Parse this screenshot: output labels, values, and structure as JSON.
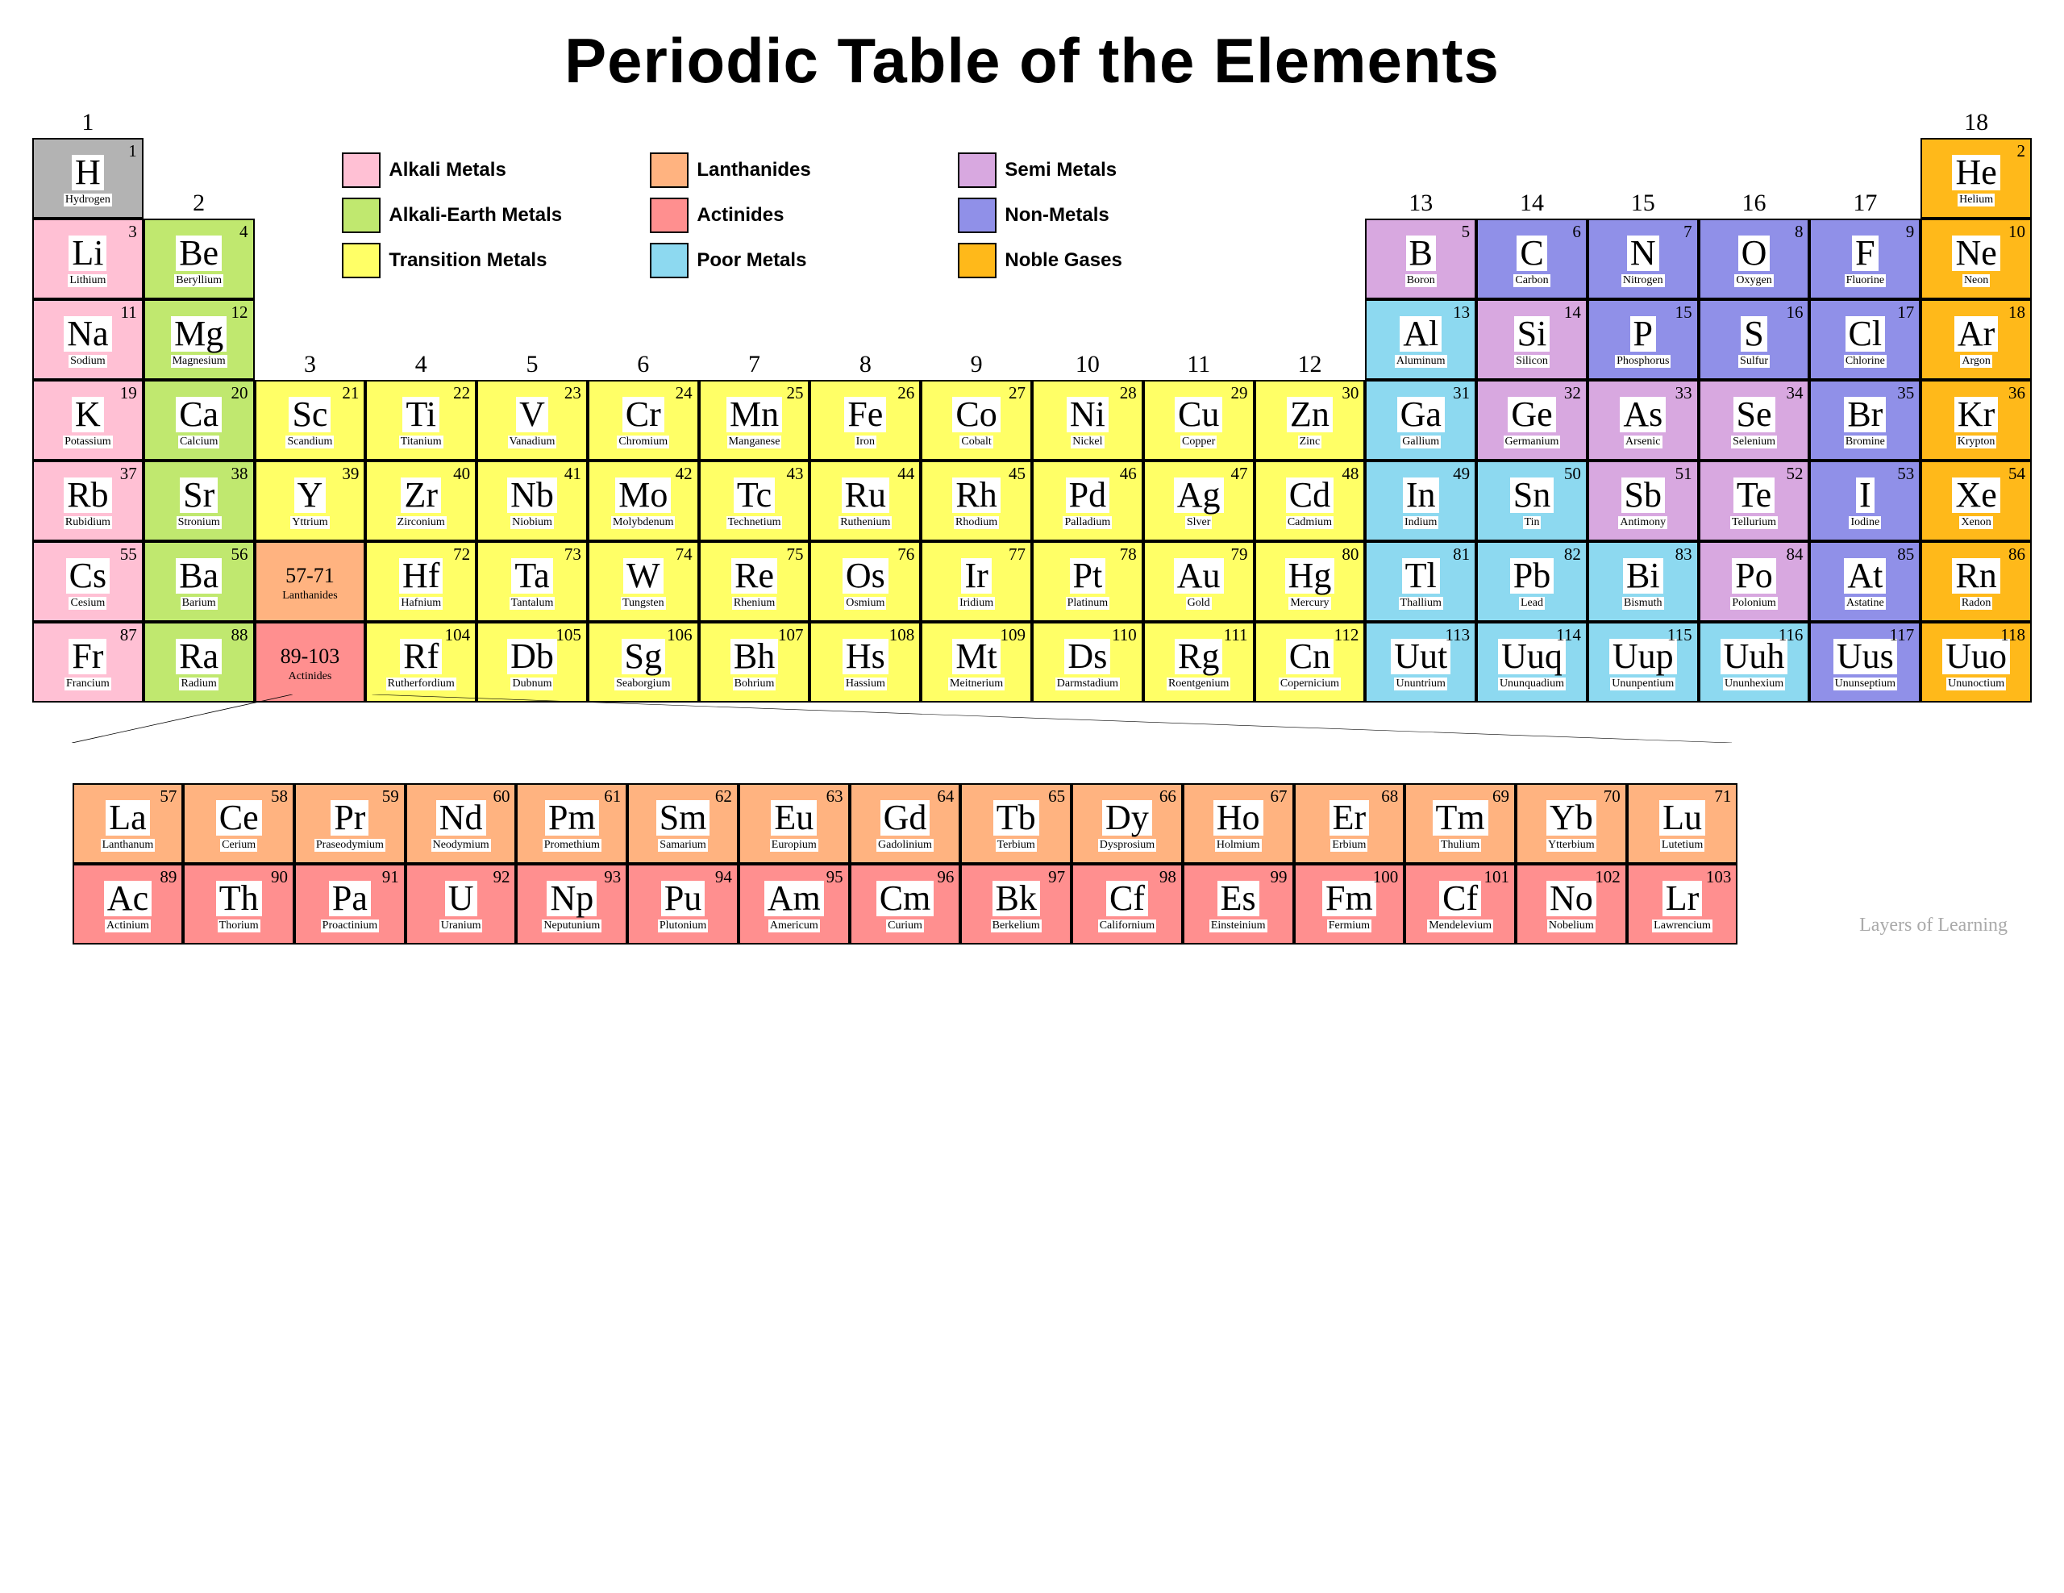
{
  "title": "Periodic Table of the Elements",
  "credit": "Layers of Learning",
  "colors": {
    "hydrogen": "#b3b3b3",
    "alkali": "#ffc0d4",
    "alkaline_earth": "#c0e86f",
    "transition": "#ffff66",
    "lanthanide": "#ffb380",
    "actinide": "#ff8f8f",
    "poor_metal": "#8dd9f0",
    "semi_metal": "#d8a8e0",
    "nonmetal": "#9090e8",
    "noble_gas": "#ffb91a",
    "border": "#000000",
    "bg": "#ffffff"
  },
  "legend": [
    {
      "label": "Alkali Metals",
      "color_key": "alkali"
    },
    {
      "label": "Alkali-Earth Metals",
      "color_key": "alkaline_earth"
    },
    {
      "label": "Transition Metals",
      "color_key": "transition"
    },
    {
      "label": "Lanthanides",
      "color_key": "lanthanide"
    },
    {
      "label": "Actinides",
      "color_key": "actinide"
    },
    {
      "label": "Poor Metals",
      "color_key": "poor_metal"
    },
    {
      "label": "Semi Metals",
      "color_key": "semi_metal"
    },
    {
      "label": "Non-Metals",
      "color_key": "nonmetal"
    },
    {
      "label": "Noble Gases",
      "color_key": "noble_gas"
    }
  ],
  "group_labels": {
    "1": {
      "col": 1,
      "row": 1
    },
    "2": {
      "col": 2,
      "row": 2
    },
    "3": {
      "col": 3,
      "row": 4
    },
    "4": {
      "col": 4,
      "row": 4
    },
    "5": {
      "col": 5,
      "row": 4
    },
    "6": {
      "col": 6,
      "row": 4
    },
    "7": {
      "col": 7,
      "row": 4
    },
    "8": {
      "col": 8,
      "row": 4
    },
    "9": {
      "col": 9,
      "row": 4
    },
    "10": {
      "col": 10,
      "row": 4
    },
    "11": {
      "col": 11,
      "row": 4
    },
    "12": {
      "col": 12,
      "row": 4
    },
    "13": {
      "col": 13,
      "row": 2
    },
    "14": {
      "col": 14,
      "row": 2
    },
    "15": {
      "col": 15,
      "row": 2
    },
    "16": {
      "col": 16,
      "row": 2
    },
    "17": {
      "col": 17,
      "row": 2
    },
    "18": {
      "col": 18,
      "row": 1
    }
  },
  "elements": [
    {
      "n": 1,
      "s": "H",
      "name": "Hydrogen",
      "r": 1,
      "c": 1,
      "cat": "hydrogen"
    },
    {
      "n": 2,
      "s": "He",
      "name": "Helium",
      "r": 1,
      "c": 18,
      "cat": "noble_gas"
    },
    {
      "n": 3,
      "s": "Li",
      "name": "Lithium",
      "r": 2,
      "c": 1,
      "cat": "alkali"
    },
    {
      "n": 4,
      "s": "Be",
      "name": "Beryllium",
      "r": 2,
      "c": 2,
      "cat": "alkaline_earth"
    },
    {
      "n": 5,
      "s": "B",
      "name": "Boron",
      "r": 2,
      "c": 13,
      "cat": "semi_metal"
    },
    {
      "n": 6,
      "s": "C",
      "name": "Carbon",
      "r": 2,
      "c": 14,
      "cat": "nonmetal"
    },
    {
      "n": 7,
      "s": "N",
      "name": "Nitrogen",
      "r": 2,
      "c": 15,
      "cat": "nonmetal"
    },
    {
      "n": 8,
      "s": "O",
      "name": "Oxygen",
      "r": 2,
      "c": 16,
      "cat": "nonmetal"
    },
    {
      "n": 9,
      "s": "F",
      "name": "Fluorine",
      "r": 2,
      "c": 17,
      "cat": "nonmetal"
    },
    {
      "n": 10,
      "s": "Ne",
      "name": "Neon",
      "r": 2,
      "c": 18,
      "cat": "noble_gas"
    },
    {
      "n": 11,
      "s": "Na",
      "name": "Sodium",
      "r": 3,
      "c": 1,
      "cat": "alkali"
    },
    {
      "n": 12,
      "s": "Mg",
      "name": "Magnesium",
      "r": 3,
      "c": 2,
      "cat": "alkaline_earth"
    },
    {
      "n": 13,
      "s": "Al",
      "name": "Aluminum",
      "r": 3,
      "c": 13,
      "cat": "poor_metal"
    },
    {
      "n": 14,
      "s": "Si",
      "name": "Silicon",
      "r": 3,
      "c": 14,
      "cat": "semi_metal"
    },
    {
      "n": 15,
      "s": "P",
      "name": "Phosphorus",
      "r": 3,
      "c": 15,
      "cat": "nonmetal"
    },
    {
      "n": 16,
      "s": "S",
      "name": "Sulfur",
      "r": 3,
      "c": 16,
      "cat": "nonmetal"
    },
    {
      "n": 17,
      "s": "Cl",
      "name": "Chlorine",
      "r": 3,
      "c": 17,
      "cat": "nonmetal"
    },
    {
      "n": 18,
      "s": "Ar",
      "name": "Argon",
      "r": 3,
      "c": 18,
      "cat": "noble_gas"
    },
    {
      "n": 19,
      "s": "K",
      "name": "Potassium",
      "r": 4,
      "c": 1,
      "cat": "alkali"
    },
    {
      "n": 20,
      "s": "Ca",
      "name": "Calcium",
      "r": 4,
      "c": 2,
      "cat": "alkaline_earth"
    },
    {
      "n": 21,
      "s": "Sc",
      "name": "Scandium",
      "r": 4,
      "c": 3,
      "cat": "transition"
    },
    {
      "n": 22,
      "s": "Ti",
      "name": "Titanium",
      "r": 4,
      "c": 4,
      "cat": "transition"
    },
    {
      "n": 23,
      "s": "V",
      "name": "Vanadium",
      "r": 4,
      "c": 5,
      "cat": "transition"
    },
    {
      "n": 24,
      "s": "Cr",
      "name": "Chromium",
      "r": 4,
      "c": 6,
      "cat": "transition"
    },
    {
      "n": 25,
      "s": "Mn",
      "name": "Manganese",
      "r": 4,
      "c": 7,
      "cat": "transition"
    },
    {
      "n": 26,
      "s": "Fe",
      "name": "Iron",
      "r": 4,
      "c": 8,
      "cat": "transition"
    },
    {
      "n": 27,
      "s": "Co",
      "name": "Cobalt",
      "r": 4,
      "c": 9,
      "cat": "transition"
    },
    {
      "n": 28,
      "s": "Ni",
      "name": "Nickel",
      "r": 4,
      "c": 10,
      "cat": "transition"
    },
    {
      "n": 29,
      "s": "Cu",
      "name": "Copper",
      "r": 4,
      "c": 11,
      "cat": "transition"
    },
    {
      "n": 30,
      "s": "Zn",
      "name": "Zinc",
      "r": 4,
      "c": 12,
      "cat": "transition"
    },
    {
      "n": 31,
      "s": "Ga",
      "name": "Gallium",
      "r": 4,
      "c": 13,
      "cat": "poor_metal"
    },
    {
      "n": 32,
      "s": "Ge",
      "name": "Germanium",
      "r": 4,
      "c": 14,
      "cat": "semi_metal"
    },
    {
      "n": 33,
      "s": "As",
      "name": "Arsenic",
      "r": 4,
      "c": 15,
      "cat": "semi_metal"
    },
    {
      "n": 34,
      "s": "Se",
      "name": "Selenium",
      "r": 4,
      "c": 16,
      "cat": "semi_metal"
    },
    {
      "n": 35,
      "s": "Br",
      "name": "Bromine",
      "r": 4,
      "c": 17,
      "cat": "nonmetal"
    },
    {
      "n": 36,
      "s": "Kr",
      "name": "Krypton",
      "r": 4,
      "c": 18,
      "cat": "noble_gas"
    },
    {
      "n": 37,
      "s": "Rb",
      "name": "Rubidium",
      "r": 5,
      "c": 1,
      "cat": "alkali"
    },
    {
      "n": 38,
      "s": "Sr",
      "name": "Stronium",
      "r": 5,
      "c": 2,
      "cat": "alkaline_earth"
    },
    {
      "n": 39,
      "s": "Y",
      "name": "Yttrium",
      "r": 5,
      "c": 3,
      "cat": "transition"
    },
    {
      "n": 40,
      "s": "Zr",
      "name": "Zirconium",
      "r": 5,
      "c": 4,
      "cat": "transition"
    },
    {
      "n": 41,
      "s": "Nb",
      "name": "Niobium",
      "r": 5,
      "c": 5,
      "cat": "transition"
    },
    {
      "n": 42,
      "s": "Mo",
      "name": "Molybdenum",
      "r": 5,
      "c": 6,
      "cat": "transition"
    },
    {
      "n": 43,
      "s": "Tc",
      "name": "Technetium",
      "r": 5,
      "c": 7,
      "cat": "transition"
    },
    {
      "n": 44,
      "s": "Ru",
      "name": "Ruthenium",
      "r": 5,
      "c": 8,
      "cat": "transition"
    },
    {
      "n": 45,
      "s": "Rh",
      "name": "Rhodium",
      "r": 5,
      "c": 9,
      "cat": "transition"
    },
    {
      "n": 46,
      "s": "Pd",
      "name": "Palladium",
      "r": 5,
      "c": 10,
      "cat": "transition"
    },
    {
      "n": 47,
      "s": "Ag",
      "name": "Slver",
      "r": 5,
      "c": 11,
      "cat": "transition"
    },
    {
      "n": 48,
      "s": "Cd",
      "name": "Cadmium",
      "r": 5,
      "c": 12,
      "cat": "transition"
    },
    {
      "n": 49,
      "s": "In",
      "name": "Indium",
      "r": 5,
      "c": 13,
      "cat": "poor_metal"
    },
    {
      "n": 50,
      "s": "Sn",
      "name": "Tin",
      "r": 5,
      "c": 14,
      "cat": "poor_metal"
    },
    {
      "n": 51,
      "s": "Sb",
      "name": "Antimony",
      "r": 5,
      "c": 15,
      "cat": "semi_metal"
    },
    {
      "n": 52,
      "s": "Te",
      "name": "Tellurium",
      "r": 5,
      "c": 16,
      "cat": "semi_metal"
    },
    {
      "n": 53,
      "s": "I",
      "name": "Iodine",
      "r": 5,
      "c": 17,
      "cat": "nonmetal"
    },
    {
      "n": 54,
      "s": "Xe",
      "name": "Xenon",
      "r": 5,
      "c": 18,
      "cat": "noble_gas"
    },
    {
      "n": 55,
      "s": "Cs",
      "name": "Cesium",
      "r": 6,
      "c": 1,
      "cat": "alkali"
    },
    {
      "n": 56,
      "s": "Ba",
      "name": "Barium",
      "r": 6,
      "c": 2,
      "cat": "alkaline_earth"
    },
    {
      "n": "",
      "s": "57-71",
      "name": "Lanthanides",
      "r": 6,
      "c": 3,
      "cat": "lanthanide",
      "range": true
    },
    {
      "n": 72,
      "s": "Hf",
      "name": "Hafnium",
      "r": 6,
      "c": 4,
      "cat": "transition"
    },
    {
      "n": 73,
      "s": "Ta",
      "name": "Tantalum",
      "r": 6,
      "c": 5,
      "cat": "transition"
    },
    {
      "n": 74,
      "s": "W",
      "name": "Tungsten",
      "r": 6,
      "c": 6,
      "cat": "transition"
    },
    {
      "n": 75,
      "s": "Re",
      "name": "Rhenium",
      "r": 6,
      "c": 7,
      "cat": "transition"
    },
    {
      "n": 76,
      "s": "Os",
      "name": "Osmium",
      "r": 6,
      "c": 8,
      "cat": "transition"
    },
    {
      "n": 77,
      "s": "Ir",
      "name": "Iridium",
      "r": 6,
      "c": 9,
      "cat": "transition"
    },
    {
      "n": 78,
      "s": "Pt",
      "name": "Platinum",
      "r": 6,
      "c": 10,
      "cat": "transition"
    },
    {
      "n": 79,
      "s": "Au",
      "name": "Gold",
      "r": 6,
      "c": 11,
      "cat": "transition"
    },
    {
      "n": 80,
      "s": "Hg",
      "name": "Mercury",
      "r": 6,
      "c": 12,
      "cat": "transition"
    },
    {
      "n": 81,
      "s": "Tl",
      "name": "Thallium",
      "r": 6,
      "c": 13,
      "cat": "poor_metal"
    },
    {
      "n": 82,
      "s": "Pb",
      "name": "Lead",
      "r": 6,
      "c": 14,
      "cat": "poor_metal"
    },
    {
      "n": 83,
      "s": "Bi",
      "name": "Bismuth",
      "r": 6,
      "c": 15,
      "cat": "poor_metal"
    },
    {
      "n": 84,
      "s": "Po",
      "name": "Polonium",
      "r": 6,
      "c": 16,
      "cat": "semi_metal"
    },
    {
      "n": 85,
      "s": "At",
      "name": "Astatine",
      "r": 6,
      "c": 17,
      "cat": "nonmetal"
    },
    {
      "n": 86,
      "s": "Rn",
      "name": "Radon",
      "r": 6,
      "c": 18,
      "cat": "noble_gas"
    },
    {
      "n": 87,
      "s": "Fr",
      "name": "Francium",
      "r": 7,
      "c": 1,
      "cat": "alkali"
    },
    {
      "n": 88,
      "s": "Ra",
      "name": "Radium",
      "r": 7,
      "c": 2,
      "cat": "alkaline_earth"
    },
    {
      "n": "",
      "s": "89-103",
      "name": "Actinides",
      "r": 7,
      "c": 3,
      "cat": "actinide",
      "range": true
    },
    {
      "n": 104,
      "s": "Rf",
      "name": "Rutherfordium",
      "r": 7,
      "c": 4,
      "cat": "transition"
    },
    {
      "n": 105,
      "s": "Db",
      "name": "Dubnum",
      "r": 7,
      "c": 5,
      "cat": "transition"
    },
    {
      "n": 106,
      "s": "Sg",
      "name": "Seaborgium",
      "r": 7,
      "c": 6,
      "cat": "transition"
    },
    {
      "n": 107,
      "s": "Bh",
      "name": "Bohrium",
      "r": 7,
      "c": 7,
      "cat": "transition"
    },
    {
      "n": 108,
      "s": "Hs",
      "name": "Hassium",
      "r": 7,
      "c": 8,
      "cat": "transition"
    },
    {
      "n": 109,
      "s": "Mt",
      "name": "Meitnerium",
      "r": 7,
      "c": 9,
      "cat": "transition"
    },
    {
      "n": 110,
      "s": "Ds",
      "name": "Darmstadium",
      "r": 7,
      "c": 10,
      "cat": "transition"
    },
    {
      "n": 111,
      "s": "Rg",
      "name": "Roentgenium",
      "r": 7,
      "c": 11,
      "cat": "transition"
    },
    {
      "n": 112,
      "s": "Cn",
      "name": "Copernicium",
      "r": 7,
      "c": 12,
      "cat": "transition"
    },
    {
      "n": 113,
      "s": "Uut",
      "name": "Ununtrium",
      "r": 7,
      "c": 13,
      "cat": "poor_metal"
    },
    {
      "n": 114,
      "s": "Uuq",
      "name": "Ununquadium",
      "r": 7,
      "c": 14,
      "cat": "poor_metal"
    },
    {
      "n": 115,
      "s": "Uup",
      "name": "Ununpentium",
      "r": 7,
      "c": 15,
      "cat": "poor_metal"
    },
    {
      "n": 116,
      "s": "Uuh",
      "name": "Ununhexium",
      "r": 7,
      "c": 16,
      "cat": "poor_metal"
    },
    {
      "n": 117,
      "s": "Uus",
      "name": "Ununseptium",
      "r": 7,
      "c": 17,
      "cat": "nonmetal"
    },
    {
      "n": 118,
      "s": "Uuo",
      "name": "Ununoctium",
      "r": 7,
      "c": 18,
      "cat": "noble_gas"
    }
  ],
  "fblock": [
    {
      "n": 57,
      "s": "La",
      "name": "Lanthanum",
      "cat": "lanthanide"
    },
    {
      "n": 58,
      "s": "Ce",
      "name": "Cerium",
      "cat": "lanthanide"
    },
    {
      "n": 59,
      "s": "Pr",
      "name": "Praseodymium",
      "cat": "lanthanide"
    },
    {
      "n": 60,
      "s": "Nd",
      "name": "Neodymium",
      "cat": "lanthanide"
    },
    {
      "n": 61,
      "s": "Pm",
      "name": "Promethium",
      "cat": "lanthanide"
    },
    {
      "n": 62,
      "s": "Sm",
      "name": "Samarium",
      "cat": "lanthanide"
    },
    {
      "n": 63,
      "s": "Eu",
      "name": "Europium",
      "cat": "lanthanide"
    },
    {
      "n": 64,
      "s": "Gd",
      "name": "Gadolinium",
      "cat": "lanthanide"
    },
    {
      "n": 65,
      "s": "Tb",
      "name": "Terbium",
      "cat": "lanthanide"
    },
    {
      "n": 66,
      "s": "Dy",
      "name": "Dysprosium",
      "cat": "lanthanide"
    },
    {
      "n": 67,
      "s": "Ho",
      "name": "Holmium",
      "cat": "lanthanide"
    },
    {
      "n": 68,
      "s": "Er",
      "name": "Erbium",
      "cat": "lanthanide"
    },
    {
      "n": 69,
      "s": "Tm",
      "name": "Thulium",
      "cat": "lanthanide"
    },
    {
      "n": 70,
      "s": "Yb",
      "name": "Ytterbium",
      "cat": "lanthanide"
    },
    {
      "n": 71,
      "s": "Lu",
      "name": "Lutetium",
      "cat": "lanthanide"
    },
    {
      "n": 89,
      "s": "Ac",
      "name": "Actinium",
      "cat": "actinide"
    },
    {
      "n": 90,
      "s": "Th",
      "name": "Thorium",
      "cat": "actinide"
    },
    {
      "n": 91,
      "s": "Pa",
      "name": "Proactinium",
      "cat": "actinide"
    },
    {
      "n": 92,
      "s": "U",
      "name": "Uranium",
      "cat": "actinide"
    },
    {
      "n": 93,
      "s": "Np",
      "name": "Neputunium",
      "cat": "actinide"
    },
    {
      "n": 94,
      "s": "Pu",
      "name": "Plutonium",
      "cat": "actinide"
    },
    {
      "n": 95,
      "s": "Am",
      "name": "Americum",
      "cat": "actinide"
    },
    {
      "n": 96,
      "s": "Cm",
      "name": "Curium",
      "cat": "actinide"
    },
    {
      "n": 97,
      "s": "Bk",
      "name": "Berkelium",
      "cat": "actinide"
    },
    {
      "n": 98,
      "s": "Cf",
      "name": "Californium",
      "cat": "actinide"
    },
    {
      "n": 99,
      "s": "Es",
      "name": "Einsteinium",
      "cat": "actinide"
    },
    {
      "n": 100,
      "s": "Fm",
      "name": "Fermium",
      "cat": "actinide"
    },
    {
      "n": 101,
      "s": "Cf",
      "name": "Mendelevium",
      "cat": "actinide"
    },
    {
      "n": 102,
      "s": "No",
      "name": "Nobelium",
      "cat": "actinide"
    },
    {
      "n": 103,
      "s": "Lr",
      "name": "Lawrencium",
      "cat": "actinide"
    }
  ]
}
